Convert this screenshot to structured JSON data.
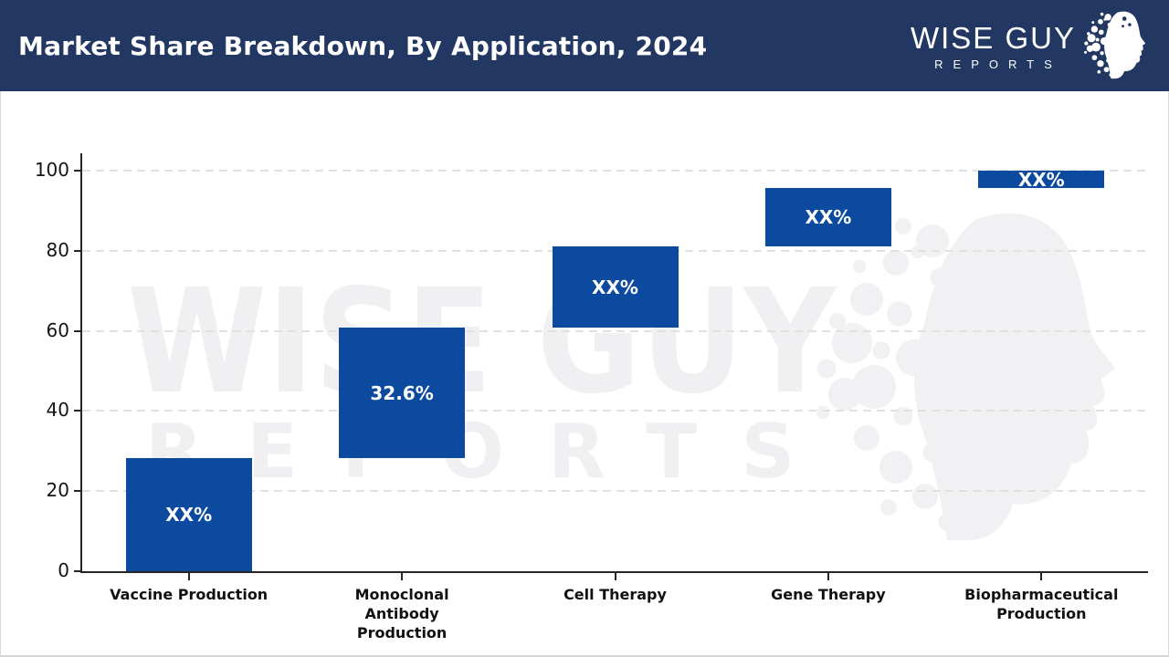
{
  "header": {
    "title": "Market Share Breakdown, By Application, 2024",
    "logo": {
      "line1": "WISE GUY",
      "line2": "REPORTS"
    }
  },
  "watermark": {
    "line1": "WISE GUY",
    "line2": "REPORTS"
  },
  "colors": {
    "header_bg": "#223862",
    "bar": "#0c4aa0",
    "bar_label": "#ffffff",
    "gridline": "#e1e1e1",
    "axis": "#262626",
    "watermark": "#f0f0f2"
  },
  "chart_data": {
    "type": "bar",
    "subtype": "floating-waterfall",
    "title": "Market Share Breakdown, By Application, 2024",
    "categories": [
      "Vaccine Production",
      "Monoclonal Antibody Production",
      "Cell Therapy",
      "Gene Therapy",
      "Biopharmaceutical Production"
    ],
    "segments": [
      {
        "category": "Vaccine Production",
        "lines": [
          "Vaccine Production"
        ],
        "start": 0,
        "end": 28.2,
        "label": "XX%"
      },
      {
        "category": "Monoclonal Antibody Production",
        "lines": [
          "Monoclonal",
          "Antibody",
          "Production"
        ],
        "start": 28.2,
        "end": 60.8,
        "label": "32.6%"
      },
      {
        "category": "Cell Therapy",
        "lines": [
          "Cell Therapy"
        ],
        "start": 60.8,
        "end": 81.0,
        "label": "XX%"
      },
      {
        "category": "Gene Therapy",
        "lines": [
          "Gene Therapy"
        ],
        "start": 81.0,
        "end": 95.6,
        "label": "XX%"
      },
      {
        "category": "Biopharmaceutical Production",
        "lines": [
          "Biopharmaceutical",
          "Production"
        ],
        "start": 95.6,
        "end": 100,
        "label": "XX%"
      }
    ],
    "xlabel": "",
    "ylabel": "",
    "ylim": [
      0,
      100
    ],
    "yticks": [
      0,
      20,
      40,
      60,
      80,
      100
    ],
    "grid": {
      "horizontal": true,
      "style": "dashed"
    },
    "legend": false
  }
}
